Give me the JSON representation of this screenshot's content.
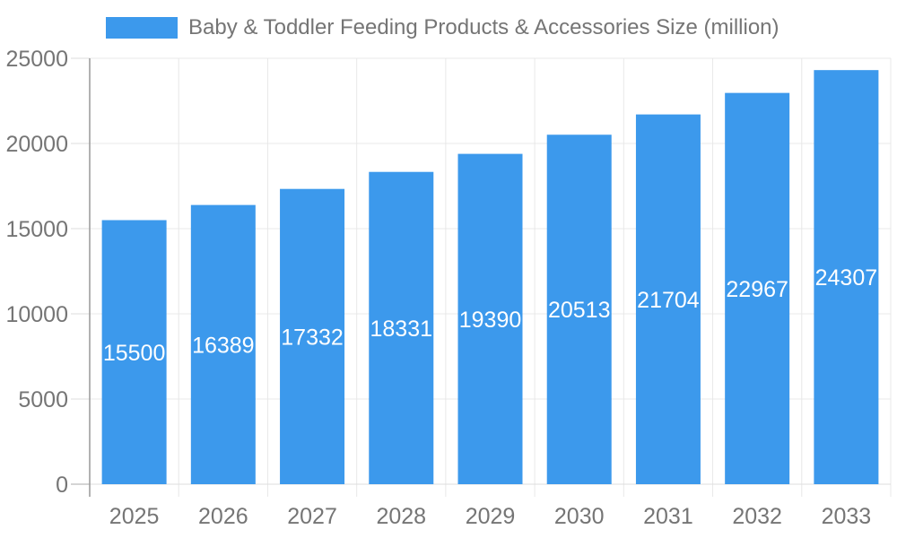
{
  "chart_data": {
    "type": "bar",
    "title": "Baby & Toddler Feeding Products & Accessories Size (million)",
    "categories": [
      "2025",
      "2026",
      "2027",
      "2028",
      "2029",
      "2030",
      "2031",
      "2032",
      "2033"
    ],
    "series": [
      {
        "name": "Baby & Toddler Feeding Products & Accessories Size (million)",
        "values": [
          15500,
          16389,
          17332,
          18331,
          19390,
          20513,
          21704,
          22967,
          24307
        ]
      }
    ],
    "xlabel": "",
    "ylabel": "",
    "ylim": [
      0,
      25000
    ],
    "yticks": [
      0,
      5000,
      10000,
      15000,
      20000,
      25000
    ],
    "grid": true,
    "legend_position": "top-left",
    "bar_color": "#3C99EC",
    "value_label_color": "#FFFFFF",
    "axis_text_color": "#757575",
    "gridline_color": "#E8E8E8",
    "axis_line_color": "#999999",
    "tick_color": "#DCDCDC",
    "zero_tick_color": "#AAAAAA",
    "baseline_color": "#DDDDDD",
    "background": "#FFFFFF"
  }
}
